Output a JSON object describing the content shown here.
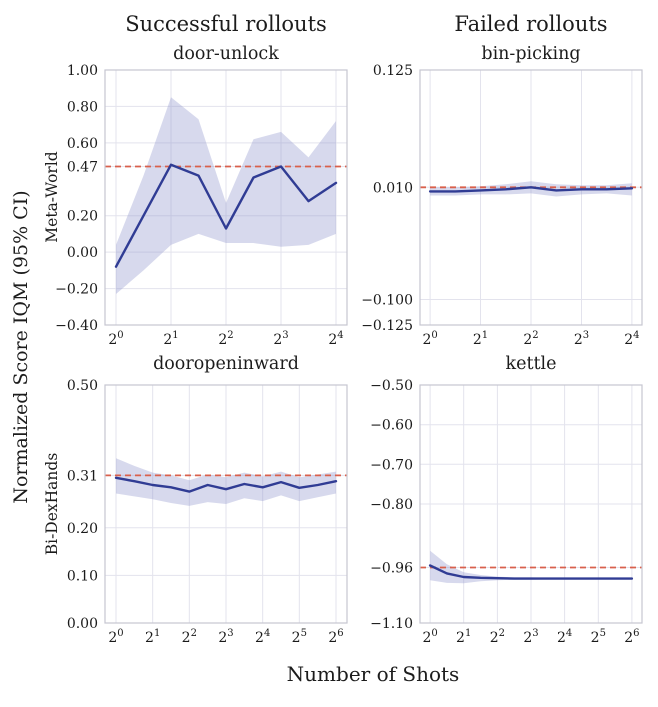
{
  "figure": {
    "column_headers": [
      "Successful rollouts",
      "Failed rollouts"
    ],
    "row_labels": [
      "Meta-World",
      "Bi-DexHands"
    ],
    "shared_ylabel": "Normalized Score IQM (95% CI)",
    "shared_xlabel": "Number of Shots"
  },
  "colors": {
    "line": "#303c94",
    "band": "#8b93cc",
    "baseline": "#d9604c",
    "grid": "#e3e3ed",
    "frame": "#c6c6d0",
    "text": "#1a1a1a"
  },
  "chart_data": [
    {
      "type": "line",
      "title": "door-unlock",
      "row": 0,
      "col": 0,
      "x_log2": [
        0,
        0.5,
        1,
        1.5,
        2,
        2.5,
        3,
        3.5,
        4
      ],
      "x_tick_exponents": [
        0,
        1,
        2,
        3,
        4
      ],
      "ylim": [
        -0.4,
        1.0
      ],
      "y_tick_values": [
        1.0,
        0.8,
        0.6,
        0.47,
        0.2,
        0.0,
        -0.2,
        -0.4
      ],
      "y_tick_labels": [
        "1.00",
        "0.80",
        "0.60",
        "0.47",
        "0.20",
        "0.00",
        "−0.20",
        "−0.40"
      ],
      "baseline": 0.47,
      "values": [
        -0.08,
        0.2,
        0.48,
        0.42,
        0.13,
        0.41,
        0.47,
        0.28,
        0.38
      ],
      "band_lower": [
        -0.23,
        -0.1,
        0.04,
        0.1,
        0.05,
        0.05,
        0.03,
        0.04,
        0.1
      ],
      "band_upper": [
        0.04,
        0.42,
        0.85,
        0.73,
        0.27,
        0.62,
        0.66,
        0.52,
        0.72
      ]
    },
    {
      "type": "line",
      "title": "bin-picking",
      "row": 0,
      "col": 1,
      "x_log2": [
        0,
        0.5,
        1,
        1.5,
        2,
        2.5,
        3,
        3.5,
        4
      ],
      "x_tick_exponents": [
        0,
        1,
        2,
        3,
        4
      ],
      "ylim": [
        -0.125,
        0.125
      ],
      "y_tick_values": [
        0.125,
        0.01,
        -0.1,
        -0.125
      ],
      "y_tick_labels": [
        "0.125",
        "0.010",
        "−0.100",
        "−0.125"
      ],
      "baseline": 0.01,
      "values": [
        0.006,
        0.006,
        0.007,
        0.008,
        0.01,
        0.007,
        0.008,
        0.008,
        0.009
      ],
      "band_lower": [
        0.002,
        0.002,
        0.003,
        0.003,
        0.004,
        0.001,
        0.003,
        0.004,
        0.002
      ],
      "band_upper": [
        0.01,
        0.01,
        0.011,
        0.013,
        0.016,
        0.013,
        0.012,
        0.012,
        0.014
      ]
    },
    {
      "type": "line",
      "title": "dooropeninward",
      "row": 1,
      "col": 0,
      "x_log2": [
        0,
        0.5,
        1,
        1.5,
        2,
        2.5,
        3,
        3.5,
        4,
        4.5,
        5,
        5.5,
        6
      ],
      "x_tick_exponents": [
        0,
        1,
        2,
        3,
        4,
        5,
        6
      ],
      "ylim": [
        0.0,
        0.5
      ],
      "y_tick_values": [
        0.5,
        0.31,
        0.2,
        0.1,
        0.0
      ],
      "y_tick_labels": [
        "0.50",
        "0.31",
        "0.20",
        "0.10",
        "0.00"
      ],
      "baseline": 0.31,
      "values": [
        0.305,
        0.298,
        0.29,
        0.285,
        0.276,
        0.29,
        0.281,
        0.292,
        0.285,
        0.296,
        0.284,
        0.29,
        0.298
      ],
      "band_lower": [
        0.272,
        0.266,
        0.26,
        0.252,
        0.246,
        0.254,
        0.25,
        0.262,
        0.256,
        0.268,
        0.256,
        0.264,
        0.272
      ],
      "band_upper": [
        0.346,
        0.33,
        0.316,
        0.31,
        0.3,
        0.312,
        0.306,
        0.316,
        0.308,
        0.318,
        0.306,
        0.312,
        0.318
      ]
    },
    {
      "type": "line",
      "title": "kettle",
      "row": 1,
      "col": 1,
      "x_log2": [
        0,
        0.5,
        1,
        1.5,
        2,
        2.5,
        3,
        3.5,
        4,
        4.5,
        5,
        5.5,
        6
      ],
      "x_tick_exponents": [
        0,
        1,
        2,
        3,
        4,
        5,
        6
      ],
      "ylim": [
        -1.1,
        -0.5
      ],
      "y_tick_values": [
        -0.5,
        -0.6,
        -0.7,
        -0.8,
        -0.96,
        -1.1
      ],
      "y_tick_labels": [
        "−0.50",
        "−0.60",
        "−0.70",
        "−0.80",
        "−0.96",
        "−1.10"
      ],
      "baseline": -0.96,
      "values": [
        -0.955,
        -0.975,
        -0.984,
        -0.986,
        -0.987,
        -0.988,
        -0.988,
        -0.988,
        -0.988,
        -0.988,
        -0.988,
        -0.988,
        -0.988
      ],
      "band_lower": [
        -0.992,
        -0.999,
        -1.0,
        -0.995,
        -0.992,
        -0.991,
        -0.991,
        -0.99,
        -0.99,
        -0.99,
        -0.99,
        -0.99,
        -0.99
      ],
      "band_upper": [
        -0.918,
        -0.952,
        -0.972,
        -0.979,
        -0.983,
        -0.985,
        -0.985,
        -0.986,
        -0.986,
        -0.986,
        -0.986,
        -0.986,
        -0.986
      ]
    }
  ]
}
